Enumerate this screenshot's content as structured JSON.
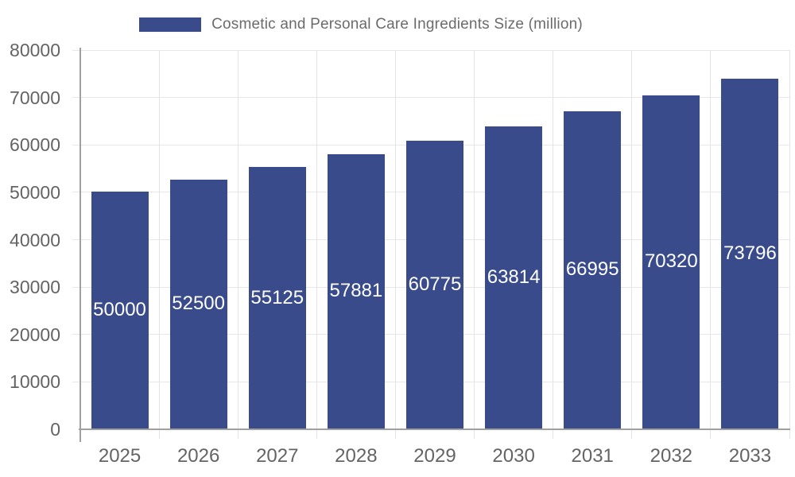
{
  "chart_data": {
    "type": "bar",
    "title": "Cosmetic and Personal Care Ingredients Size (million)",
    "categories": [
      "2025",
      "2026",
      "2027",
      "2028",
      "2029",
      "2030",
      "2031",
      "2032",
      "2033"
    ],
    "values": [
      50000,
      52500,
      55125,
      57881,
      60775,
      63814,
      66995,
      70320,
      73796
    ],
    "value_labels": [
      "50000",
      "52500",
      "55125",
      "57881",
      "60775",
      "63814",
      "66995",
      "70320",
      "73796"
    ],
    "ylim": [
      0,
      80000
    ],
    "yticks": [
      0,
      10000,
      20000,
      30000,
      40000,
      50000,
      60000,
      70000,
      80000
    ],
    "ytick_labels": [
      "0",
      "10000",
      "20000",
      "30000",
      "40000",
      "50000",
      "60000",
      "70000",
      "80000"
    ],
    "grid": true,
    "legend_position": "top",
    "xlabel": "",
    "ylabel": "",
    "colors": {
      "bar": "#3a4b8c",
      "value_label": "#ffffff",
      "grid": "#e7e7e7",
      "axis": "#a0a0a0",
      "tick_label": "#646464",
      "title": "#6b6b6b",
      "background": "#ffffff"
    }
  },
  "legend": {
    "label": "Cosmetic and Personal Care Ingredients Size (million)"
  }
}
